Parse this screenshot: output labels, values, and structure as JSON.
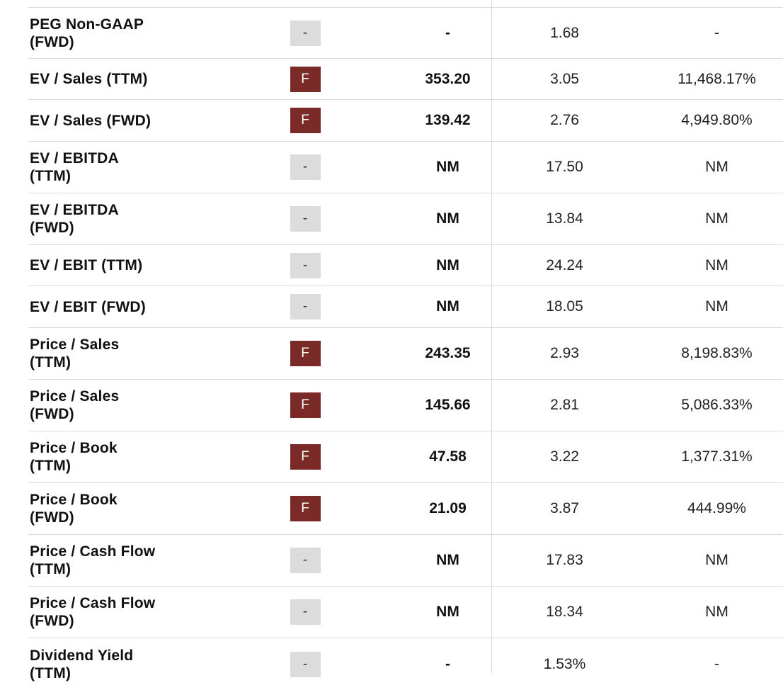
{
  "colors": {
    "grade_f_bg": "#7a2a27",
    "grade_na_bg": "#dcdcdc",
    "divider": "#d9d9d9"
  },
  "rows": [
    {
      "metric": "PEG Non-GAAP\n(FWD)",
      "grade": "-",
      "value": "-",
      "sector": "1.68",
      "diff": "-"
    },
    {
      "metric": "EV / Sales (TTM)",
      "grade": "F",
      "value": "353.20",
      "sector": "3.05",
      "diff": "11,468.17%"
    },
    {
      "metric": "EV / Sales (FWD)",
      "grade": "F",
      "value": "139.42",
      "sector": "2.76",
      "diff": "4,949.80%"
    },
    {
      "metric": "EV / EBITDA\n(TTM)",
      "grade": "-",
      "value": "NM",
      "sector": "17.50",
      "diff": "NM"
    },
    {
      "metric": "EV / EBITDA\n(FWD)",
      "grade": "-",
      "value": "NM",
      "sector": "13.84",
      "diff": "NM"
    },
    {
      "metric": "EV / EBIT (TTM)",
      "grade": "-",
      "value": "NM",
      "sector": "24.24",
      "diff": "NM"
    },
    {
      "metric": "EV / EBIT (FWD)",
      "grade": "-",
      "value": "NM",
      "sector": "18.05",
      "diff": "NM"
    },
    {
      "metric": "Price / Sales\n(TTM)",
      "grade": "F",
      "value": "243.35",
      "sector": "2.93",
      "diff": "8,198.83%"
    },
    {
      "metric": "Price / Sales\n(FWD)",
      "grade": "F",
      "value": "145.66",
      "sector": "2.81",
      "diff": "5,086.33%"
    },
    {
      "metric": "Price / Book\n(TTM)",
      "grade": "F",
      "value": "47.58",
      "sector": "3.22",
      "diff": "1,377.31%"
    },
    {
      "metric": "Price / Book\n(FWD)",
      "grade": "F",
      "value": "21.09",
      "sector": "3.87",
      "diff": "444.99%"
    },
    {
      "metric": "Price / Cash Flow\n(TTM)",
      "grade": "-",
      "value": "NM",
      "sector": "17.83",
      "diff": "NM"
    },
    {
      "metric": "Price / Cash Flow\n(FWD)",
      "grade": "-",
      "value": "NM",
      "sector": "18.34",
      "diff": "NM"
    },
    {
      "metric": "Dividend Yield\n(TTM)",
      "grade": "-",
      "value": "-",
      "sector": "1.53%",
      "diff": "-"
    }
  ]
}
